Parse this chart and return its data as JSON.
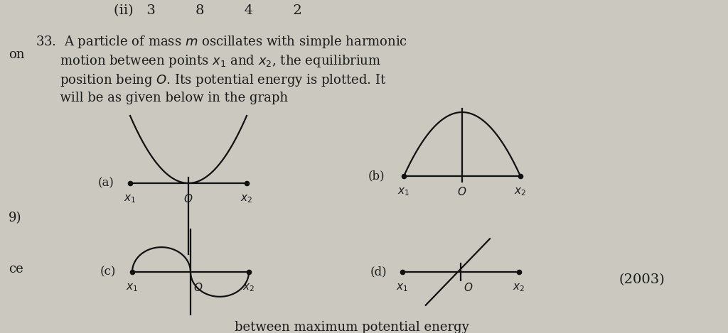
{
  "background_color": "#cbc8c0",
  "text_color": "#1a1a1a",
  "side_label": "on",
  "left_label1": "9)",
  "left_label2": "ce",
  "year_label": "(2003)",
  "bottom_text": "between maximum potential energy",
  "top_numbers": "(ii)   3         8         4         2",
  "curve_color": "#111111",
  "axis_color": "#111111",
  "dot_color": "#111111",
  "line_width": 1.6,
  "dot_size": 4.5,
  "font_size_text": 13,
  "font_size_label": 11,
  "font_size_graph_label": 12
}
